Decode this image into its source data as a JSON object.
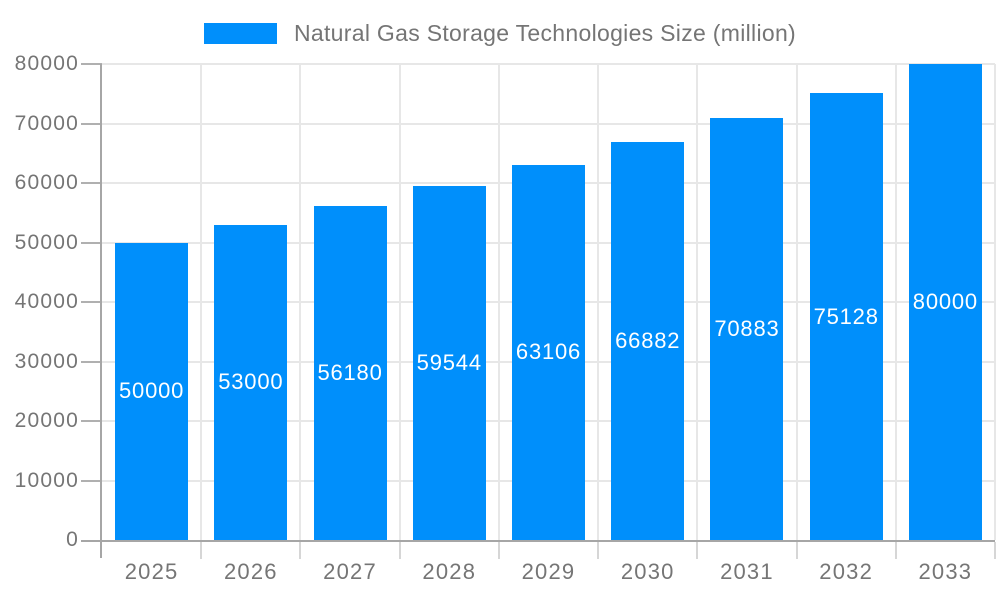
{
  "chart_data": {
    "type": "bar",
    "title": "Natural Gas Storage Technologies Size (million)",
    "categories": [
      "2025",
      "2026",
      "2027",
      "2028",
      "2029",
      "2030",
      "2031",
      "2032",
      "2033"
    ],
    "values": [
      50000,
      53000,
      56180,
      59544,
      63106,
      66882,
      70883,
      75128,
      80000
    ],
    "value_labels": [
      "50000",
      "53000",
      "56180",
      "59544",
      "63106",
      "66882",
      "70883",
      "75128",
      "80000"
    ],
    "xlabel": "",
    "ylabel": "",
    "ylim": [
      0,
      80000
    ],
    "ytick_step": 10000,
    "yticks": [
      0,
      10000,
      20000,
      30000,
      40000,
      50000,
      60000,
      70000,
      80000
    ],
    "grid": true,
    "legend_position": "top",
    "bar_color": "#008FFB",
    "value_label_color": "#FFFFFF",
    "axis_text_color": "#757575",
    "gridline_color": "#e7e7e7",
    "axis_line_color": "#a6a6a6"
  }
}
